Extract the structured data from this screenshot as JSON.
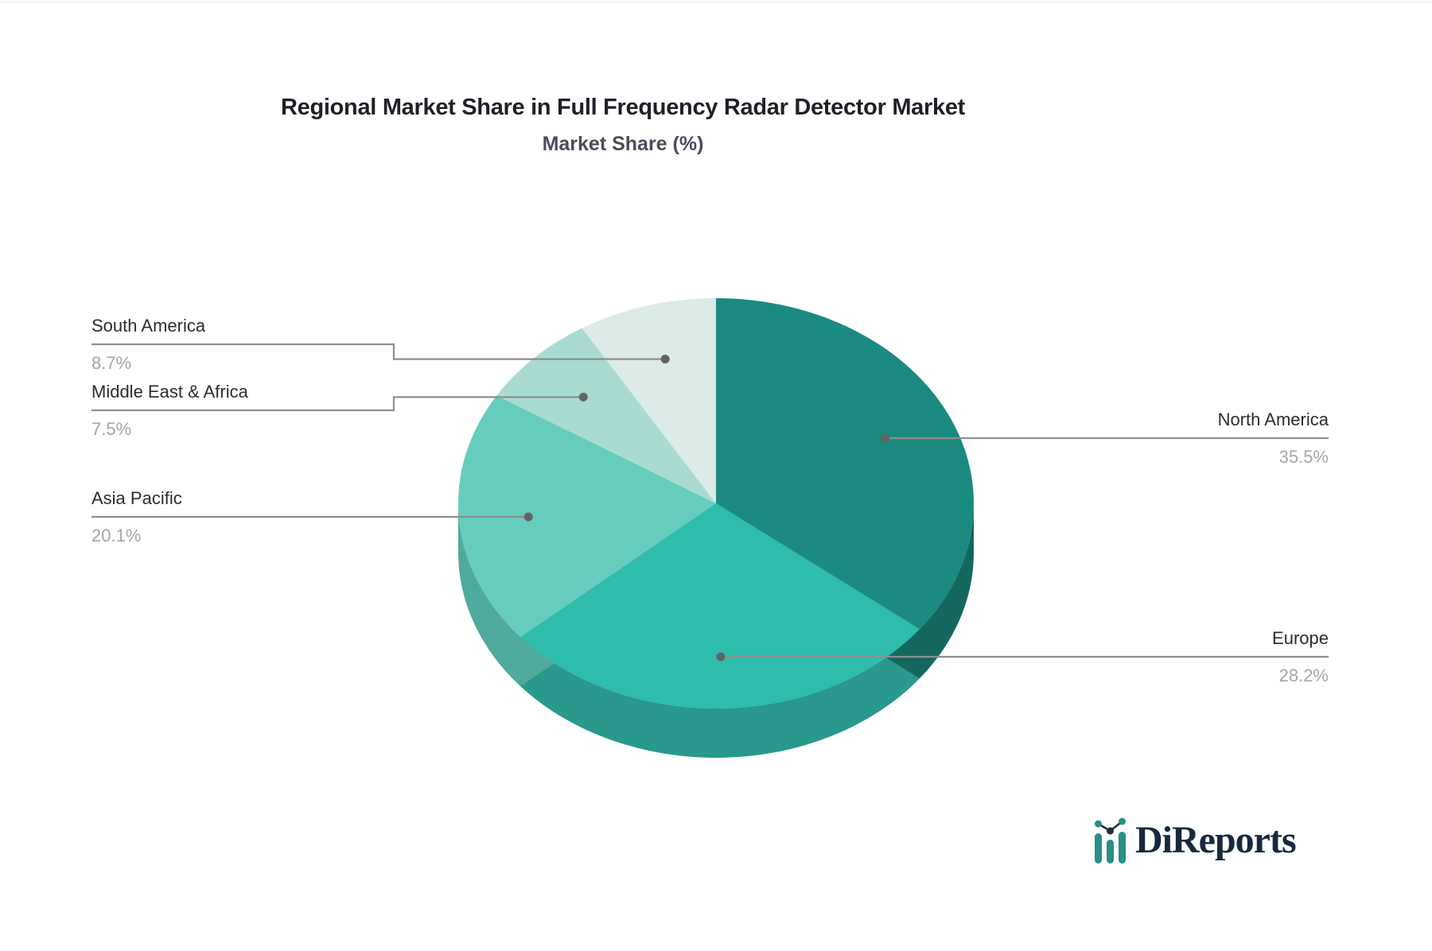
{
  "title": "Regional Market Share in Full Frequency Radar Detector Market",
  "subtitle": "Market Share (%)",
  "logo": {
    "text": "DiReports"
  },
  "colors": {
    "background": "#ffffff",
    "title_text": "#1d2127",
    "subtitle_text": "#474e58",
    "label_text": "#2d2d2d",
    "value_text": "#a5a5a5",
    "leader_line": "#8e8e8e",
    "leader_dot": "#636363",
    "logo_navy": "#17293e",
    "logo_teal": "#2a8f86"
  },
  "chart_data": {
    "type": "pie",
    "title": "Regional Market Share in Full Frequency Radar Detector Market",
    "subtitle": "Market Share (%)",
    "unit": "%",
    "style": "3d",
    "start_angle_deg": 0,
    "direction": "clockwise",
    "legend_position": "callout-labels",
    "slices": [
      {
        "label": "North America",
        "value": 35.5,
        "display": "35.5%",
        "color": "#1b8a80",
        "side_color": "#14675f",
        "label_side": "right"
      },
      {
        "label": "Europe",
        "value": 28.2,
        "display": "28.2%",
        "color": "#2ebcab",
        "side_color": "#28998c",
        "label_side": "right"
      },
      {
        "label": "Asia Pacific",
        "value": 20.1,
        "display": "20.1%",
        "color": "#66cdbe",
        "side_color": "#4fa99c",
        "label_side": "left"
      },
      {
        "label": "Middle East & Africa",
        "value": 7.5,
        "display": "7.5%",
        "color": "#a9dbd2",
        "side_color": "#86b0a8",
        "label_side": "left"
      },
      {
        "label": "South America",
        "value": 8.7,
        "display": "8.7%",
        "color": "#dcebe7",
        "side_color": "#b2c2bd",
        "label_side": "left"
      }
    ]
  }
}
